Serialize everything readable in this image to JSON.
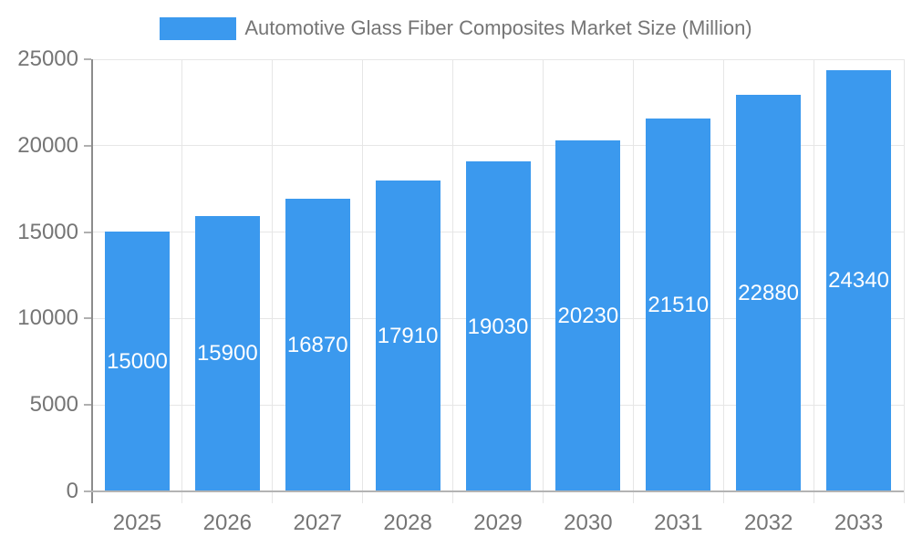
{
  "legend": {
    "label": "Automotive Glass Fiber Composites Market Size (Million)",
    "swatch_color": "#3b99ee"
  },
  "chart_data": {
    "type": "bar",
    "title": "Automotive Glass Fiber Composites Market Size (Million)",
    "categories": [
      "2025",
      "2026",
      "2027",
      "2028",
      "2029",
      "2030",
      "2031",
      "2032",
      "2033"
    ],
    "series": [
      {
        "name": "Automotive Glass Fiber Composites Market Size (Million)",
        "values": [
          15000,
          15900,
          16870,
          17910,
          19030,
          20230,
          21510,
          22880,
          24340
        ]
      }
    ],
    "value_labels": [
      "15000",
      "15900",
      "16870",
      "17910",
      "19030",
      "20230",
      "21510",
      "22880",
      "24340"
    ],
    "xlabel": "",
    "ylabel": "",
    "ylim": [
      0,
      25000
    ],
    "y_ticks": [
      0,
      5000,
      10000,
      15000,
      20000,
      25000
    ],
    "y_tick_labels": [
      "0",
      "5000",
      "10000",
      "15000",
      "20000",
      "25000"
    ],
    "grid": true,
    "legend_position": "top",
    "colors": {
      "bar": "#3b99ee",
      "bar_value_text": "#ffffff",
      "axis_text": "#757575",
      "grid_line": "#e6e6e6",
      "y_axis_line": "#8c8c8c",
      "x_axis_line": "#b3b3b3"
    }
  }
}
